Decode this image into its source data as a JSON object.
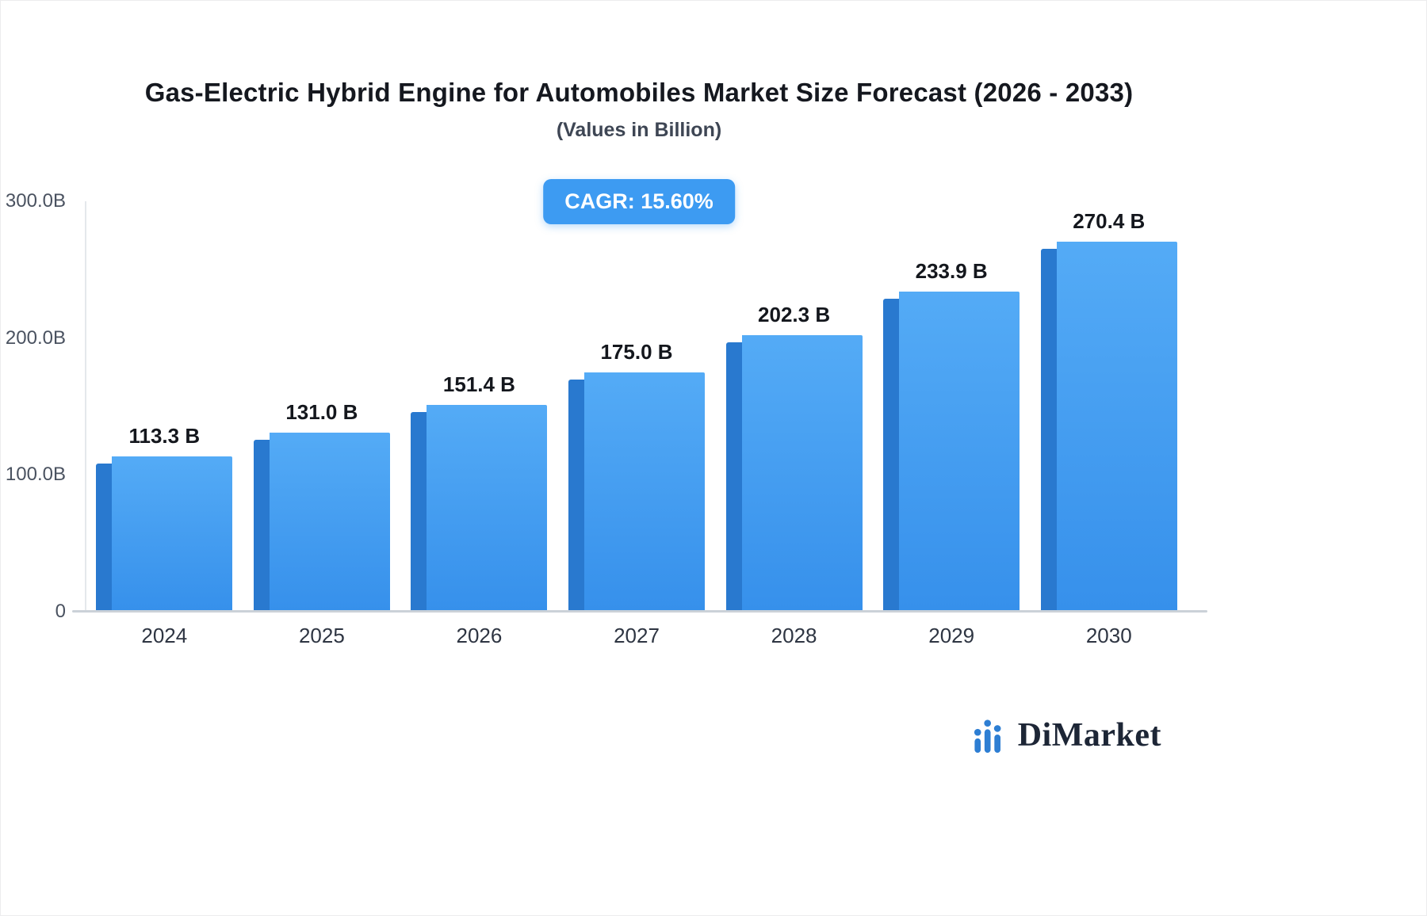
{
  "header": {
    "title": "Gas-Electric Hybrid Engine for Automobiles Market Size Forecast (2026 - 2033)",
    "subtitle": "(Values in Billion)",
    "cagr_label": "CAGR: 15.60%"
  },
  "chart_data": {
    "type": "bar",
    "title": "Gas-Electric Hybrid Engine for Automobiles Market Size Forecast (2026 - 2033)",
    "subtitle": "(Values in Billion)",
    "annotation": "CAGR: 15.60%",
    "categories": [
      "2024",
      "2025",
      "2026",
      "2027",
      "2028",
      "2029",
      "2030"
    ],
    "values": [
      113.3,
      131.0,
      151.4,
      175.0,
      202.3,
      233.9,
      270.4
    ],
    "value_labels": [
      "113.3 B",
      "131.0 B",
      "151.4 B",
      "175.0 B",
      "202.3 B",
      "233.9 B",
      "270.4 B"
    ],
    "xlabel": "",
    "ylabel": "",
    "ylim": [
      0,
      300
    ],
    "y_ticks": [
      {
        "value": 300,
        "label": "300.0B"
      },
      {
        "value": 200,
        "label": "200.0B"
      },
      {
        "value": 100,
        "label": "100.0B"
      },
      {
        "value": 0,
        "label": "0"
      }
    ],
    "grid": false,
    "legend": false
  },
  "branding": {
    "logo_text": "DiMarket"
  },
  "colors": {
    "bar_face_top": "#54ABF6",
    "bar_face_bottom": "#3690EB",
    "bar_side": "#2979CF",
    "badge_bg": "#3D9BF2",
    "badge_text": "#FFFFFF",
    "title_text": "#15181F",
    "axis_text": "#4A5260",
    "logo_blue": "#2D7ED3",
    "logo_text_color": "#1D2636"
  }
}
